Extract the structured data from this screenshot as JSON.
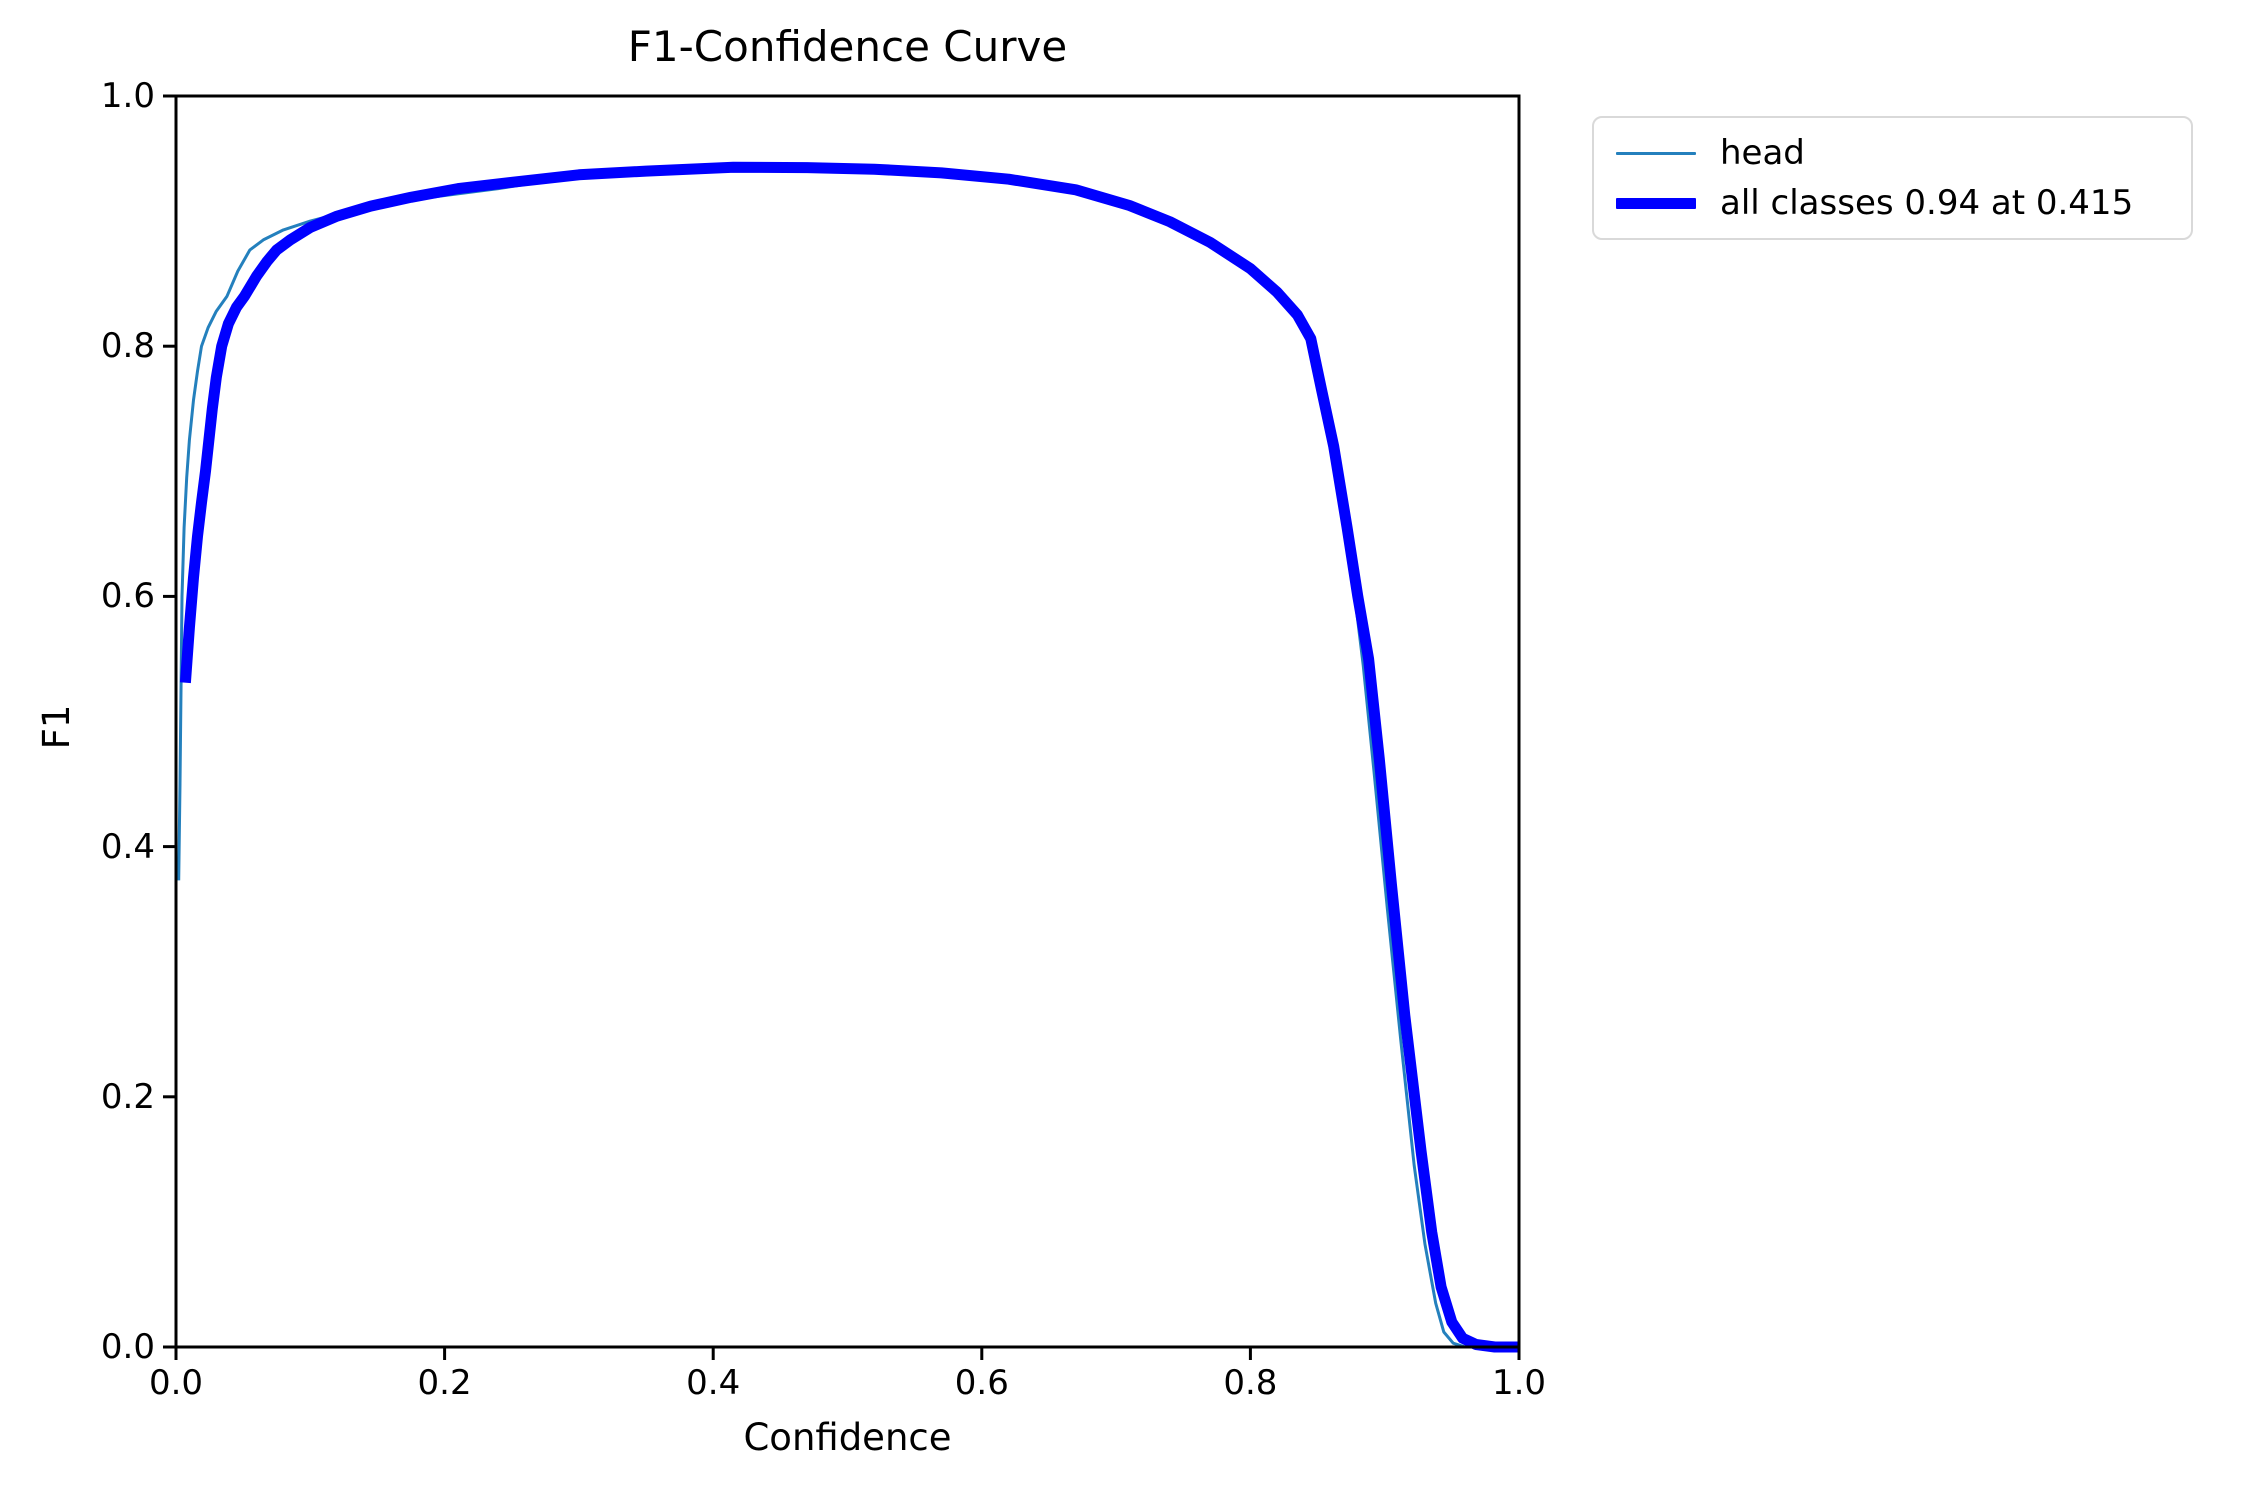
{
  "chart_data": {
    "type": "line",
    "title": "F1-Confidence Curve",
    "xlabel": "Confidence",
    "ylabel": "F1",
    "xlim": [
      0,
      1
    ],
    "ylim": [
      0,
      1
    ],
    "x_tick_labels": [
      "0.0",
      "0.2",
      "0.4",
      "0.6",
      "0.8",
      "1.0"
    ],
    "y_tick_labels": [
      "0.0",
      "0.2",
      "0.4",
      "0.6",
      "0.8",
      "1.0"
    ],
    "grid": false,
    "axis_color": "#000000",
    "background_color": "#ffffff",
    "legend": {
      "position": "outside-upper-right",
      "border_color": "#d9d9d9"
    },
    "series": [
      {
        "name": "head",
        "color": "#2480bd",
        "line_width": 3,
        "points": [
          [
            0.002,
            0.373
          ],
          [
            0.003,
            0.45
          ],
          [
            0.0045,
            0.6
          ],
          [
            0.006,
            0.655
          ],
          [
            0.008,
            0.695
          ],
          [
            0.01,
            0.725
          ],
          [
            0.013,
            0.757
          ],
          [
            0.016,
            0.78
          ],
          [
            0.019,
            0.8
          ],
          [
            0.024,
            0.815
          ],
          [
            0.03,
            0.828
          ],
          [
            0.038,
            0.84
          ],
          [
            0.046,
            0.86
          ],
          [
            0.055,
            0.877
          ],
          [
            0.065,
            0.885
          ],
          [
            0.08,
            0.893
          ],
          [
            0.1,
            0.9
          ],
          [
            0.125,
            0.907
          ],
          [
            0.15,
            0.912
          ],
          [
            0.19,
            0.919
          ],
          [
            0.24,
            0.926
          ],
          [
            0.3,
            0.936
          ],
          [
            0.36,
            0.9405
          ],
          [
            0.42,
            0.9435
          ],
          [
            0.5,
            0.9425
          ],
          [
            0.56,
            0.94
          ],
          [
            0.62,
            0.934
          ],
          [
            0.68,
            0.922
          ],
          [
            0.72,
            0.909
          ],
          [
            0.76,
            0.888
          ],
          [
            0.79,
            0.868
          ],
          [
            0.81,
            0.851
          ],
          [
            0.83,
            0.828
          ],
          [
            0.84,
            0.812
          ],
          [
            0.848,
            0.79
          ],
          [
            0.856,
            0.755
          ],
          [
            0.866,
            0.7
          ],
          [
            0.876,
            0.615
          ],
          [
            0.884,
            0.545
          ],
          [
            0.892,
            0.46
          ],
          [
            0.902,
            0.35
          ],
          [
            0.912,
            0.245
          ],
          [
            0.922,
            0.145
          ],
          [
            0.93,
            0.082
          ],
          [
            0.938,
            0.035
          ],
          [
            0.944,
            0.012
          ],
          [
            0.951,
            0.003
          ],
          [
            0.96,
            0.0
          ],
          [
            1.0,
            0.0
          ]
        ]
      },
      {
        "name": "all classes 0.94 at 0.415",
        "color": "#0000ff",
        "line_width": 11,
        "points": [
          [
            0.007,
            0.531
          ],
          [
            0.01,
            0.575
          ],
          [
            0.013,
            0.615
          ],
          [
            0.016,
            0.648
          ],
          [
            0.019,
            0.675
          ],
          [
            0.022,
            0.7
          ],
          [
            0.027,
            0.75
          ],
          [
            0.03,
            0.775
          ],
          [
            0.034,
            0.8
          ],
          [
            0.039,
            0.818
          ],
          [
            0.045,
            0.831
          ],
          [
            0.051,
            0.84
          ],
          [
            0.06,
            0.856
          ],
          [
            0.068,
            0.868
          ],
          [
            0.075,
            0.877
          ],
          [
            0.085,
            0.885
          ],
          [
            0.1,
            0.895
          ],
          [
            0.12,
            0.904
          ],
          [
            0.145,
            0.912
          ],
          [
            0.175,
            0.919
          ],
          [
            0.21,
            0.926
          ],
          [
            0.25,
            0.931
          ],
          [
            0.3,
            0.937
          ],
          [
            0.35,
            0.94
          ],
          [
            0.415,
            0.943
          ],
          [
            0.47,
            0.9428
          ],
          [
            0.52,
            0.9415
          ],
          [
            0.57,
            0.9385
          ],
          [
            0.62,
            0.9335
          ],
          [
            0.67,
            0.925
          ],
          [
            0.71,
            0.9125
          ],
          [
            0.74,
            0.8995
          ],
          [
            0.77,
            0.883
          ],
          [
            0.8,
            0.862
          ],
          [
            0.82,
            0.843
          ],
          [
            0.835,
            0.825
          ],
          [
            0.845,
            0.806
          ],
          [
            0.853,
            0.765
          ],
          [
            0.862,
            0.72
          ],
          [
            0.872,
            0.655
          ],
          [
            0.88,
            0.6
          ],
          [
            0.888,
            0.55
          ],
          [
            0.896,
            0.47
          ],
          [
            0.905,
            0.37
          ],
          [
            0.915,
            0.265
          ],
          [
            0.927,
            0.157
          ],
          [
            0.935,
            0.092
          ],
          [
            0.942,
            0.048
          ],
          [
            0.95,
            0.02
          ],
          [
            0.958,
            0.007
          ],
          [
            0.968,
            0.002
          ],
          [
            0.982,
            0.0
          ],
          [
            1.0,
            0.0
          ]
        ]
      }
    ]
  }
}
